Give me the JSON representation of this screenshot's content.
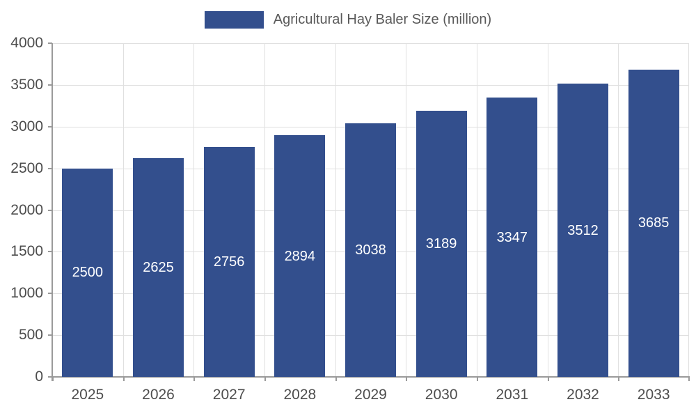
{
  "chart_data": {
    "type": "bar",
    "title": "Agricultural Hay Baler Size (million)",
    "categories": [
      "2025",
      "2026",
      "2027",
      "2028",
      "2029",
      "2030",
      "2031",
      "2032",
      "2033"
    ],
    "values": [
      2500,
      2625,
      2756,
      2894,
      3038,
      3189,
      3347,
      3512,
      3685
    ],
    "xlabel": "",
    "ylabel": "",
    "ylim": [
      0,
      4000
    ],
    "ytick_step": 500,
    "grid": true,
    "legend_position": "top",
    "bar_color": "#334F8D",
    "value_label_color": "#ffffff"
  }
}
